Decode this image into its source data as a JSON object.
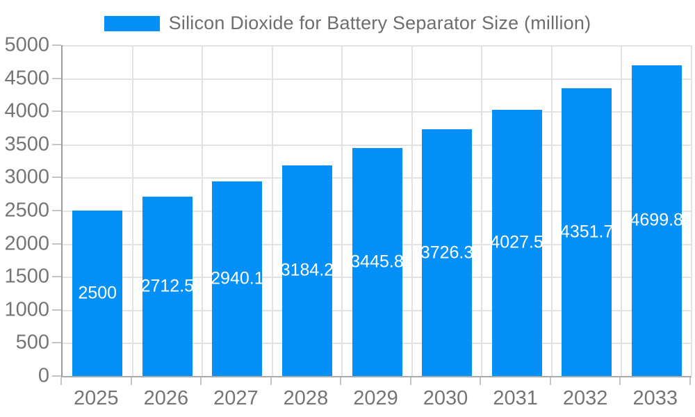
{
  "chart_data": {
    "type": "bar",
    "title": "Silicon Dioxide for Battery Separator Size (million)",
    "legend": {
      "label": "Silicon Dioxide for Battery Separator Size (million)",
      "position": "top-center"
    },
    "categories": [
      "2025",
      "2026",
      "2027",
      "2028",
      "2029",
      "2030",
      "2031",
      "2032",
      "2033"
    ],
    "series": [
      {
        "name": "Silicon Dioxide for Battery Separator Size (million)",
        "values": [
          2500,
          2712.5,
          2940.1,
          3184.2,
          3445.8,
          3726.3,
          4027.5,
          4351.7,
          4699.8
        ]
      }
    ],
    "value_labels": [
      "2500",
      "2712.5",
      "2940.1",
      "3184.2",
      "3445.8",
      "3726.3",
      "4027.5",
      "4351.7",
      "4699.8"
    ],
    "xlabel": "",
    "ylabel": "",
    "ylim": [
      0,
      5000
    ],
    "ytick_step": 500,
    "ytick_labels": [
      "0",
      "500",
      "1000",
      "1500",
      "2000",
      "2500",
      "3000",
      "3500",
      "4000",
      "4500",
      "5000"
    ],
    "grid": true,
    "colors": {
      "bar": "#0590F7",
      "grid_line": "#e2e2e2",
      "axis_line": "#a2a2a2",
      "tick": "#c4c4c4",
      "axis_label": "#757575",
      "legend_text": "#6e6e6e",
      "value_label": "#ffffff",
      "background": "#ffffff"
    }
  }
}
